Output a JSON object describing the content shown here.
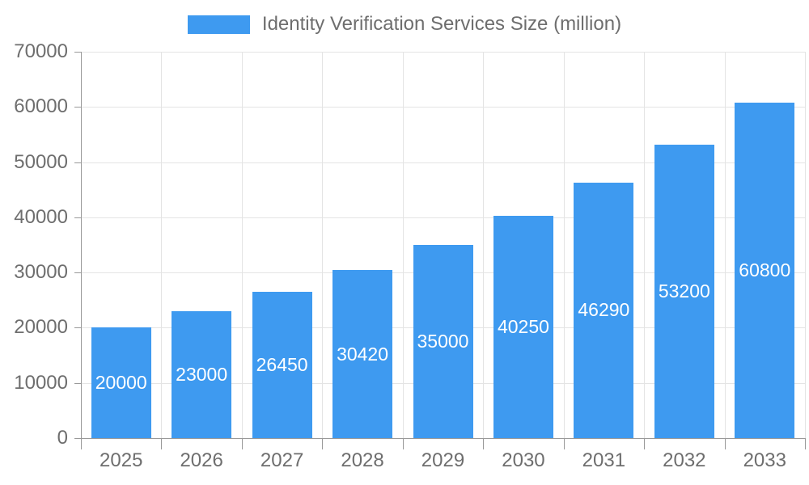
{
  "chart_data": {
    "type": "bar",
    "title": "Identity Verification Services Size (million)",
    "categories": [
      "2025",
      "2026",
      "2027",
      "2028",
      "2029",
      "2030",
      "2031",
      "2032",
      "2033"
    ],
    "values": [
      20000,
      23000,
      26450,
      30420,
      35000,
      40250,
      46290,
      53200,
      60800
    ],
    "yticks": [
      0,
      10000,
      20000,
      30000,
      40000,
      50000,
      60000,
      70000
    ],
    "ylim": [
      0,
      70000
    ],
    "xlabel": "",
    "ylabel": "",
    "grid": true,
    "legend_position": "top",
    "value_labels_inside_bars": true,
    "colors": {
      "bar": "#3E9AF0",
      "grid": "#E4E4E4",
      "axis_line": "#999999",
      "axis_label": "#6E6E6E",
      "value_label": "#FFFFFF",
      "background": "#FFFFFF"
    }
  }
}
